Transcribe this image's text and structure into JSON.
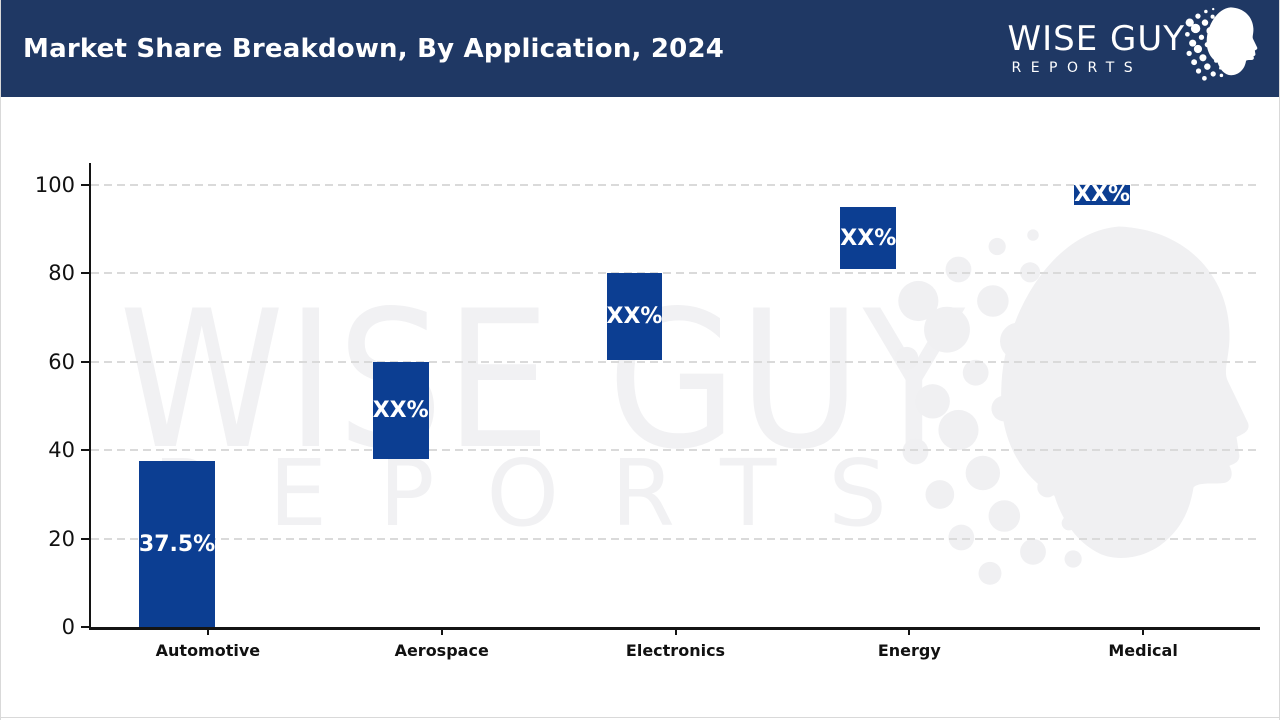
{
  "header": {
    "title": "Market Share Breakdown, By Application, 2024",
    "logo": {
      "line1": "WISE GUY",
      "line2": "REPORTS"
    }
  },
  "watermark": {
    "line1": "WISE GUY",
    "line2": "REPORTS"
  },
  "colors": {
    "header_bg": "#1f3864",
    "bar_blue": "#0c3e92",
    "grid_gray": "#dadada",
    "watermark_gray": "#f1f1f3",
    "label_white": "#ffffff"
  },
  "chart_data": {
    "type": "bar",
    "subtype": "waterfall",
    "title": "Market Share Breakdown, By Application, 2024",
    "categories": [
      "Automotive",
      "Aerospace",
      "Electronics",
      "Energy",
      "Medical"
    ],
    "bars": [
      {
        "category": "Automotive",
        "start": 0,
        "end": 37.5,
        "label": "37.5%"
      },
      {
        "category": "Aerospace",
        "start": 38,
        "end": 60,
        "label": "XX%"
      },
      {
        "category": "Electronics",
        "start": 60.5,
        "end": 80,
        "label": "XX%"
      },
      {
        "category": "Energy",
        "start": 81,
        "end": 95,
        "label": "XX%"
      },
      {
        "category": "Medical",
        "start": 95.5,
        "end": 100,
        "label": "XX%"
      }
    ],
    "yticks": [
      0,
      20,
      40,
      60,
      80,
      100
    ],
    "ylim": [
      0,
      105
    ],
    "xlabel": "",
    "ylabel": "",
    "grid": "horizontal-dashed",
    "legend": "none",
    "bar_color": "#0c3e92",
    "bar_label_color": "#ffffff"
  }
}
